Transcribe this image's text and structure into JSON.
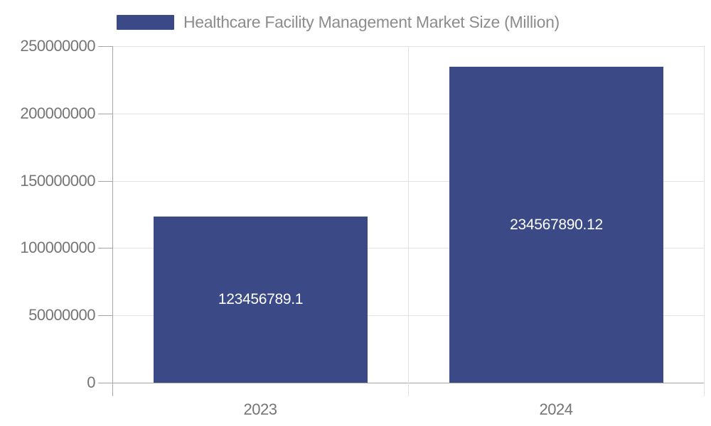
{
  "chart_data": {
    "type": "bar",
    "title": "Healthcare Facility Management Market Size (Million)",
    "legend": {
      "position": "top",
      "entries": [
        "Healthcare Facility Management Market Size (Million)"
      ]
    },
    "categories": [
      "2023",
      "2024"
    ],
    "series": [
      {
        "name": "Healthcare Facility Management Market Size (Million)",
        "values": [
          123456789.1,
          234567890.12
        ],
        "value_labels": [
          "123456789.1",
          "234567890.12"
        ],
        "color": "#3b4a87"
      }
    ],
    "xlabel": "",
    "ylabel": "",
    "ylim": [
      0,
      250000000
    ],
    "yticks": [
      {
        "value": 0,
        "label": "0"
      },
      {
        "value": 50000000,
        "label": "50000000"
      },
      {
        "value": 100000000,
        "label": "100000000"
      },
      {
        "value": 150000000,
        "label": "150000000"
      },
      {
        "value": 200000000,
        "label": "200000000"
      },
      {
        "value": 250000000,
        "label": "250000000"
      }
    ],
    "grid": true,
    "background": "#ffffff"
  },
  "colors": {
    "bar": "#3b4a87",
    "legend_text": "#8c8c8c",
    "tick_text": "#757575",
    "axis_line": "#a6a6a6",
    "grid_line": "#e2e2e2",
    "bar_label_text": "#ffffff"
  }
}
